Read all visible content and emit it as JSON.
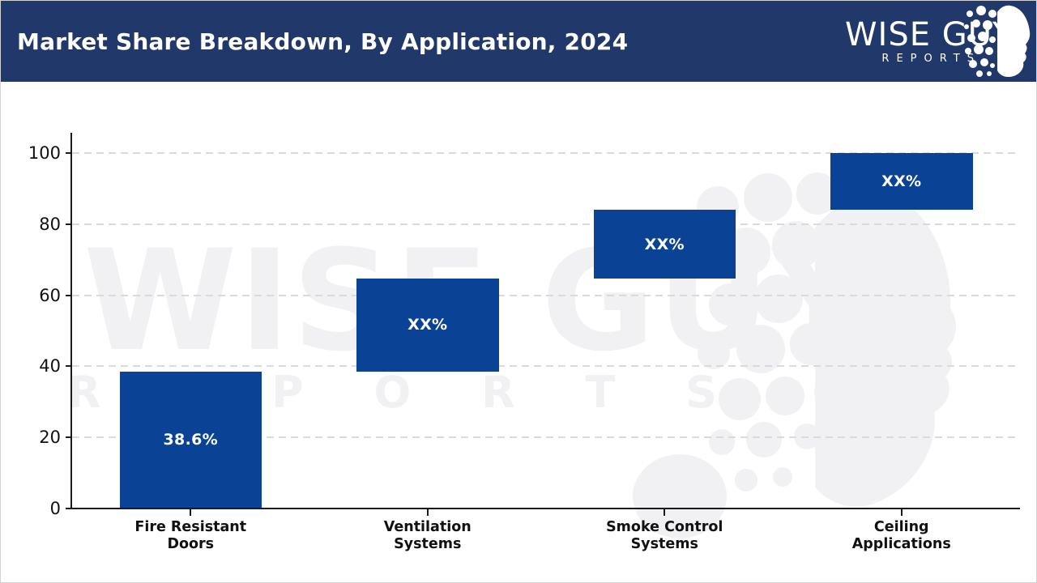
{
  "header": {
    "title": "Market Share Breakdown, By Application, 2024",
    "bg_color": "#20386a",
    "text_color": "#ffffff",
    "logo": {
      "line1": "WISE GUY",
      "line2": "REPORTS"
    }
  },
  "watermark": {
    "line1": "WISE GUY",
    "line2": "R E P O R T S",
    "color": "#f1f1f4"
  },
  "chart_data": {
    "type": "bar",
    "subtype": "floating-waterfall",
    "title": "Market Share Breakdown, By Application, 2024",
    "xlabel": "",
    "ylabel": "",
    "ylim": [
      0,
      105
    ],
    "yticks": [
      0,
      20,
      40,
      60,
      80,
      100
    ],
    "grid": "horizontal-dashed",
    "legend": "none",
    "bar_color": "#0a4396",
    "bar_label_color": "#ffffff",
    "categories": [
      {
        "lines": [
          "Fire Resistant",
          "Doors"
        ]
      },
      {
        "lines": [
          "Ventilation",
          "Systems"
        ]
      },
      {
        "lines": [
          "Smoke Control",
          "Systems"
        ]
      },
      {
        "lines": [
          "Ceiling",
          "Applications"
        ]
      }
    ],
    "segments": [
      {
        "category": "Fire Resistant Doors",
        "start": 0,
        "end": 38.6,
        "label": "38.6%"
      },
      {
        "category": "Ventilation Systems",
        "start": 38.6,
        "end": 64.6,
        "label": "XX%"
      },
      {
        "category": "Smoke Control Systems",
        "start": 64.6,
        "end": 84.0,
        "label": "XX%"
      },
      {
        "category": "Ceiling Applications",
        "start": 84.0,
        "end": 100.0,
        "label": "XX%"
      }
    ]
  }
}
